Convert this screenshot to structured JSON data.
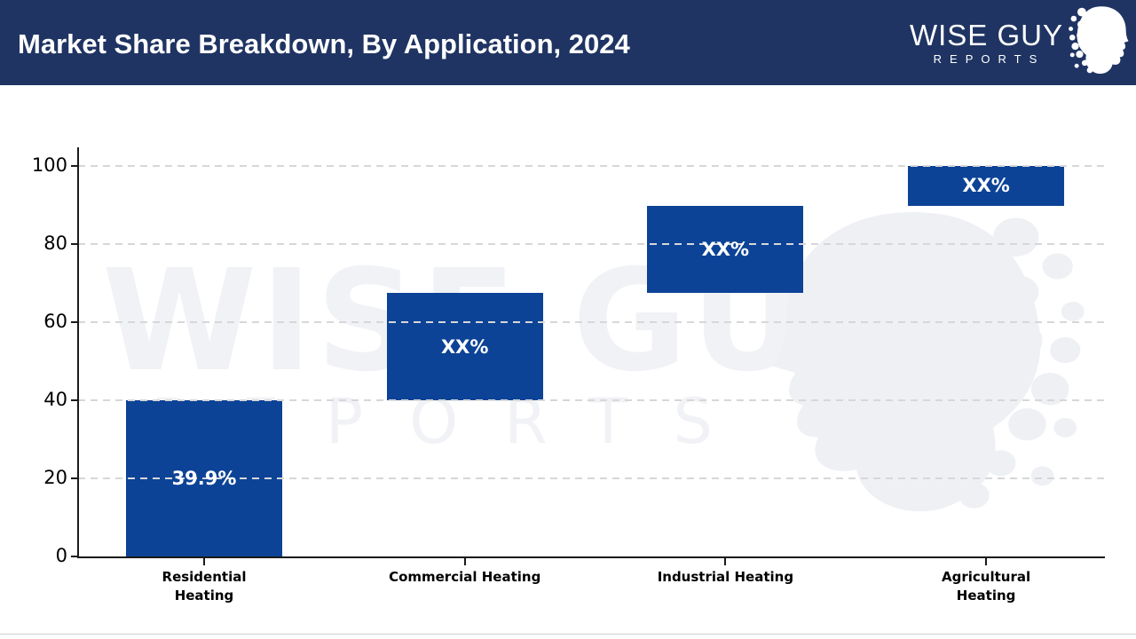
{
  "header": {
    "title": "Market Share Breakdown, By Application, 2024",
    "bg_color": "#1F3463",
    "logo": {
      "line1": "WISE GUY",
      "line2": "REPORTS"
    }
  },
  "watermark": {
    "line1": "WISE GUY",
    "line2": "REPORTS"
  },
  "colors": {
    "header_bg": "#1F3463",
    "bar": "#0C4397",
    "axis": "#1a1a1a",
    "grid": "#d7d7d7",
    "watermark": "#f1f2f5",
    "bar_label": "#ffffff"
  },
  "chart_data": {
    "type": "bar",
    "subtype": "waterfall",
    "title": "Market Share Breakdown, By Application, 2024",
    "categories": [
      "Residential Heating",
      "Commercial Heating",
      "Industrial Heating",
      "Agricultural Heating"
    ],
    "category_lines": [
      [
        "Residential",
        "Heating"
      ],
      [
        "Commercial Heating"
      ],
      [
        "Industrial Heating"
      ],
      [
        "Agricultural",
        "Heating"
      ]
    ],
    "segments": [
      {
        "category": "Residential Heating",
        "start": 0,
        "end": 39.9,
        "label": "39.9%"
      },
      {
        "category": "Commercial Heating",
        "start": 39.9,
        "end": 67.5,
        "label": "XX%"
      },
      {
        "category": "Industrial Heating",
        "start": 67.5,
        "end": 89.8,
        "label": "XX%"
      },
      {
        "category": "Agricultural Heating",
        "start": 89.8,
        "end": 100,
        "label": "XX%"
      }
    ],
    "xlabel": "",
    "ylabel": "",
    "ylim": [
      0,
      100
    ],
    "yticks": [
      0,
      20,
      40,
      60,
      80,
      100
    ],
    "grid": {
      "horizontal": true,
      "style": "dashed",
      "on_top": true
    },
    "bar_color": "#0C4397",
    "bar_label_color": "#ffffff",
    "legend": null
  }
}
